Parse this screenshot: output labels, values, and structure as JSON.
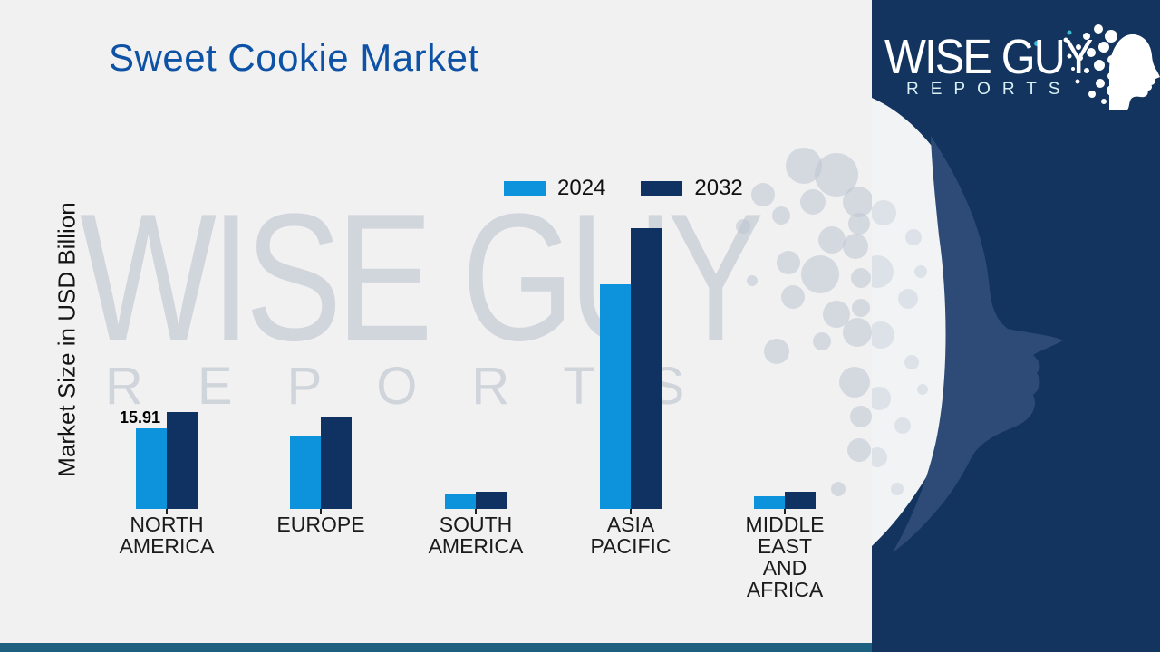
{
  "header": {
    "title": "Sweet Cookie Market"
  },
  "logo": {
    "brand_line1": "WISE GUY",
    "brand_line2": "REPORTS"
  },
  "watermark": {
    "line1": "WISE GUY",
    "line2": "REPORTS"
  },
  "footer": {
    "note": ""
  },
  "colors": {
    "background": "#f1f1f2",
    "title_blue": "#0d52a5",
    "bar_2024": "#0c93dc",
    "bar_2032": "#103263",
    "brand_navy": "#12345e",
    "brand_face_navy": "#2e4b77",
    "footer_teal": "#1d6080",
    "watermark_gray": "#c3cad6",
    "logo_dot_cyan": "#3bbcd4"
  },
  "chart_data": {
    "type": "bar",
    "title": "Sweet Cookie Market",
    "xlabel": "",
    "ylabel": "Market Size in USD Billion",
    "unit": "USD Billion",
    "categories": [
      "NORTH AMERICA",
      "EUROPE",
      "SOUTH AMERICA",
      "ASIA PACIFIC",
      "MIDDLE EAST AND AFRICA"
    ],
    "series": [
      {
        "name": "2024",
        "color": "#0c93dc",
        "values": [
          15.91,
          14.3,
          2.9,
          44.2,
          2.5
        ]
      },
      {
        "name": "2032",
        "color": "#103263",
        "values": [
          19.1,
          18.1,
          3.4,
          55.4,
          3.4
        ]
      }
    ],
    "annotations": [
      {
        "category_index": 0,
        "series": "2024",
        "text": "15.91"
      }
    ],
    "legend_position": "top",
    "grid": false,
    "ylim": [
      0,
      60
    ]
  }
}
